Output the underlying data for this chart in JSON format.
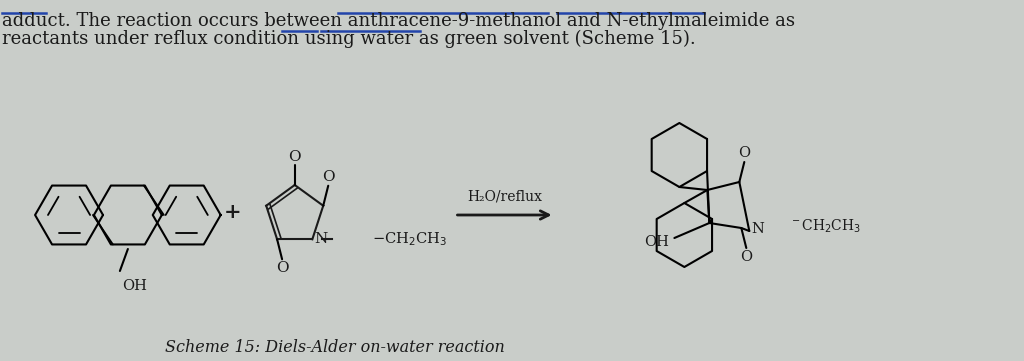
{
  "bg_color": "#c9cdc9",
  "text_color": "#1a1a1a",
  "title_line1": "adduct. The reaction occurs between anthracene-9-methanol and N-ethylmaleimide as",
  "title_line2": "reactants under reflux condition using water as green solvent (Scheme 15).",
  "arrow_label": "H₂O/reflux",
  "scheme_caption": "Scheme 15: Diels-Alder on-water reaction",
  "underline_color": "#2244aa",
  "font_size_main": 13.0,
  "font_size_caption": 11.5
}
